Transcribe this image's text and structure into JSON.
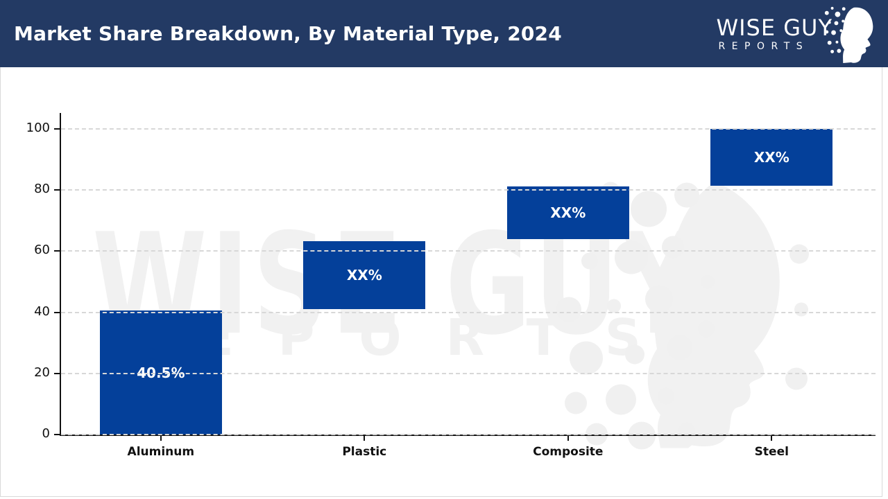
{
  "header": {
    "title": "Market Share Breakdown, By Material Type, 2024",
    "logo": {
      "line1": "WISE GUY",
      "line2": "REPORTS"
    }
  },
  "watermark": {
    "line1": "WISE GUY",
    "line2": "REPORTS"
  },
  "colors": {
    "header_bg": "#233a64",
    "bar": "#04409a",
    "grid": "#d7d7d7",
    "axis": "#111111",
    "bar_label": "#ffffff",
    "watermark": "#f1f1f1"
  },
  "chart_data": {
    "type": "bar",
    "subtype": "waterfall",
    "title": "Market Share Breakdown, By Material Type, 2024",
    "categories": [
      "Aluminum",
      "Plastic",
      "Composite",
      "Steel"
    ],
    "segments": [
      {
        "category": "Aluminum",
        "from": 0,
        "to": 40.5,
        "label": "40.5%"
      },
      {
        "category": "Plastic",
        "from": 41.0,
        "to": 63.3,
        "label": "XX%"
      },
      {
        "category": "Composite",
        "from": 63.9,
        "to": 81.1,
        "label": "XX%"
      },
      {
        "category": "Steel",
        "from": 81.4,
        "to": 100,
        "label": "XX%"
      }
    ],
    "xlabel": "",
    "ylabel": "",
    "yticks": [
      0,
      20,
      40,
      60,
      80,
      100
    ],
    "ylim": [
      0,
      105.2
    ],
    "grid": "dashed-horizontal",
    "legend": "none"
  }
}
